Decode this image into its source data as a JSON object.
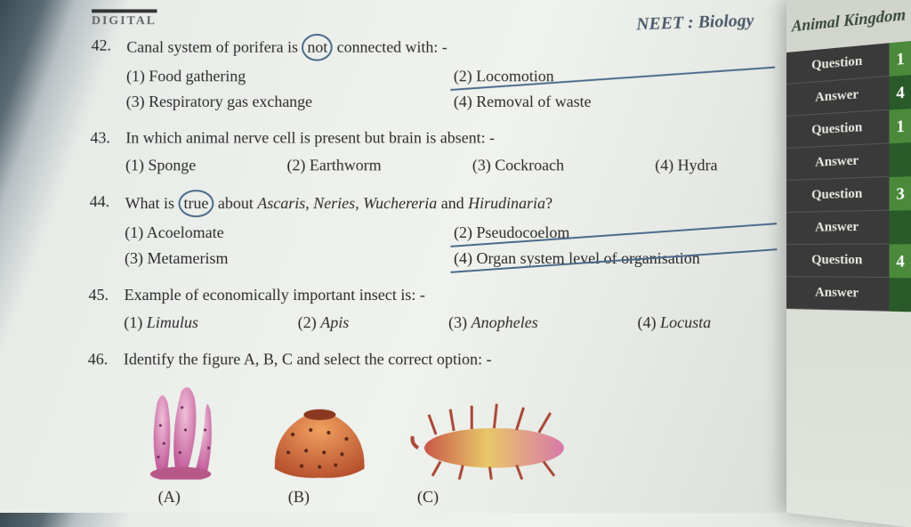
{
  "header": {
    "logo": "DIGITAL",
    "subject_label": "NEET : Biology",
    "side_heading": "Animal Kingdom"
  },
  "questions": {
    "q42": {
      "num": "42.",
      "stem_pre": "Canal system of porifera is ",
      "stem_circled": "not",
      "stem_post": " connected with: -",
      "opt1": "(1) Food gathering",
      "opt2": "(2) Locomotion",
      "opt3": "(3) Respiratory gas exchange",
      "opt4": "(4) Removal of waste"
    },
    "q43": {
      "num": "43.",
      "stem": "In which animal nerve cell is present but brain is absent: -",
      "opt1": "(1) Sponge",
      "opt2": "(2) Earthworm",
      "opt3": "(3) Cockroach",
      "opt4": "(4) Hydra"
    },
    "q44": {
      "num": "44.",
      "stem_pre": "What is ",
      "stem_circled": "true",
      "stem_post_a": " about ",
      "stem_italic": "Ascaris, Neries, Wuchereria",
      "stem_post_b": " and ",
      "stem_italic2": "Hirudinaria",
      "stem_end": "?",
      "opt1": "(1) Acoelomate",
      "opt2": "(2) Pseudocoelom",
      "opt3": "(3) Metamerism",
      "opt4": "(4) Organ system level of organisation"
    },
    "q45": {
      "num": "45.",
      "stem": "Example of economically important insect is: -",
      "opt1_pre": "(1) ",
      "opt1": "Limulus",
      "opt2_pre": "(2) ",
      "opt2": "Apis",
      "opt3_pre": "(3) ",
      "opt3": "Anopheles",
      "opt4_pre": "(4) ",
      "opt4": "Locusta"
    },
    "q46": {
      "num": "46.",
      "stem": "Identify the figure A, B, C and select the correct option: -",
      "labA": "(A)",
      "labB": "(B)",
      "labC": "(C)"
    }
  },
  "side_table": {
    "rows": [
      {
        "label": "Question",
        "val": "1",
        "bg": "green"
      },
      {
        "label": "Answer",
        "val": "4",
        "bg": "dgreen"
      },
      {
        "label": "Question",
        "val": "1",
        "bg": "green"
      },
      {
        "label": "Answer",
        "val": "",
        "bg": "dgreen"
      },
      {
        "label": "Question",
        "val": "3",
        "bg": "green"
      },
      {
        "label": "Answer",
        "val": "",
        "bg": "dgreen"
      },
      {
        "label": "Question",
        "val": "4",
        "bg": "green"
      },
      {
        "label": "Answer",
        "val": "",
        "bg": "dgreen"
      }
    ]
  },
  "colors": {
    "organism_pink": "#d66aa8",
    "organism_pink_light": "#e8a8c8",
    "organism_orange": "#d87838",
    "organism_red": "#c84838",
    "organism_yellow": "#e8c868",
    "spot": "#5a2a4a"
  }
}
